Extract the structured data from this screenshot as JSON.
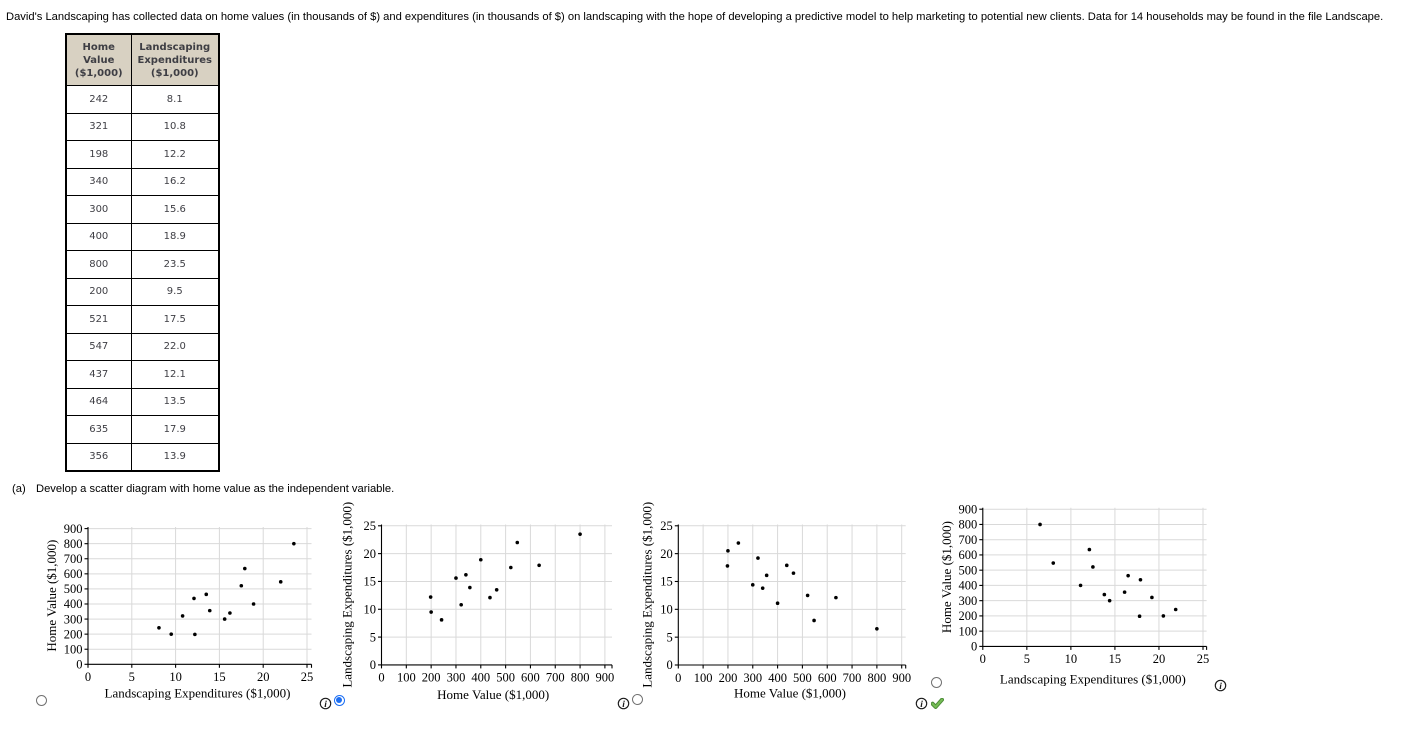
{
  "intro_text": "David's Landscaping has collected data on home values (in thousands of $) and expenditures (in thousands of $) on landscaping with the hope of developing a predictive model to help marketing to potential new clients. Data for 14 households may be found in the file Landscape.",
  "data_table": {
    "column_headers": [
      "Home Value ($1,000)",
      "Landscaping Expenditures ($1,000)"
    ],
    "column_header_lines": [
      [
        "Home",
        "Value",
        "($1,000)"
      ],
      [
        "Landscaping",
        "Expenditures",
        "($1,000)"
      ]
    ],
    "rows": [
      [
        "242",
        "8.1"
      ],
      [
        "321",
        "10.8"
      ],
      [
        "198",
        "12.2"
      ],
      [
        "340",
        "16.2"
      ],
      [
        "300",
        "15.6"
      ],
      [
        "400",
        "18.9"
      ],
      [
        "800",
        "23.5"
      ],
      [
        "200",
        "9.5"
      ],
      [
        "521",
        "17.5"
      ],
      [
        "547",
        "22.0"
      ],
      [
        "437",
        "12.1"
      ],
      [
        "464",
        "13.5"
      ],
      [
        "635",
        "17.9"
      ],
      [
        "356",
        "13.9"
      ]
    ]
  },
  "question": {
    "label": "(a)",
    "text": "Develop a scatter diagram with home value as the independent variable."
  },
  "options": [
    {
      "id": "option-1",
      "selected": false
    },
    {
      "id": "option-2",
      "selected": true
    },
    {
      "id": "option-3",
      "selected": false
    },
    {
      "id": "option-4",
      "selected": false
    }
  ],
  "grade_mark": {
    "shown": true,
    "type": "correct-checkmark",
    "color": "#69aa48"
  },
  "icons": {
    "info": "info-circle-icon",
    "info_glyph": "i",
    "radio": "radio-button",
    "check": "green-checkmark-icon"
  },
  "colors": {
    "radio_selected": "#1b6ef3",
    "table_header_bg": "#d8d1c2",
    "grid_line": "#d9d9d9",
    "axis_line": "#000000",
    "marker": "#000000",
    "check_green_dark": "#4e8c3a",
    "check_green_light": "#76bd55"
  },
  "chart_data": [
    {
      "type": "scatter",
      "xlabel": "Landscaping Expenditures ($1,000)",
      "ylabel": "Home Value ($1,000)",
      "xlim": [
        0,
        25
      ],
      "ylim": [
        0,
        900
      ],
      "xticks": [
        0,
        5,
        10,
        15,
        20,
        25
      ],
      "yticks": [
        0,
        100,
        200,
        300,
        400,
        500,
        600,
        700,
        800,
        900
      ],
      "grid": true,
      "x": [
        8.1,
        10.8,
        12.2,
        16.2,
        15.6,
        18.9,
        23.5,
        9.5,
        17.5,
        22.0,
        12.1,
        13.5,
        17.9,
        13.9
      ],
      "y": [
        242,
        321,
        198,
        340,
        300,
        400,
        800,
        200,
        521,
        547,
        437,
        464,
        635,
        356
      ]
    },
    {
      "type": "scatter",
      "xlabel": "Home Value ($1,000)",
      "ylabel": "Landscaping Expenditures ($1,000)",
      "xlim": [
        0,
        900
      ],
      "ylim": [
        0,
        25
      ],
      "xticks": [
        0,
        100,
        200,
        300,
        400,
        500,
        600,
        700,
        800,
        900
      ],
      "yticks": [
        0,
        5,
        10,
        15,
        20,
        25
      ],
      "grid": true,
      "x": [
        242,
        321,
        198,
        340,
        300,
        400,
        800,
        200,
        521,
        547,
        437,
        464,
        635,
        356
      ],
      "y": [
        8.1,
        10.8,
        12.2,
        16.2,
        15.6,
        18.9,
        23.5,
        9.5,
        17.5,
        22.0,
        12.1,
        13.5,
        17.9,
        13.9
      ]
    },
    {
      "type": "scatter",
      "xlabel": "Home Value ($1,000)",
      "ylabel": "Landscaping Expenditures ($1,000)",
      "xlim": [
        0,
        900
      ],
      "ylim": [
        0,
        25
      ],
      "xticks": [
        0,
        100,
        200,
        300,
        400,
        500,
        600,
        700,
        800,
        900
      ],
      "yticks": [
        0,
        5,
        10,
        15,
        20,
        25
      ],
      "grid": true,
      "x": [
        242,
        321,
        198,
        340,
        300,
        400,
        800,
        200,
        521,
        547,
        437,
        464,
        635,
        356
      ],
      "y": [
        21.9,
        19.2,
        17.8,
        13.8,
        14.4,
        11.1,
        6.5,
        20.5,
        12.5,
        8.0,
        17.9,
        16.5,
        12.1,
        16.1
      ]
    },
    {
      "type": "scatter",
      "xlabel": "Landscaping Expenditures ($1,000)",
      "ylabel": "Home Value ($1,000)",
      "xlim": [
        0,
        25
      ],
      "ylim": [
        0,
        900
      ],
      "xticks": [
        0,
        5,
        10,
        15,
        20,
        25
      ],
      "yticks": [
        0,
        100,
        200,
        300,
        400,
        500,
        600,
        700,
        800,
        900
      ],
      "grid": true,
      "x": [
        21.9,
        19.2,
        17.8,
        13.8,
        14.4,
        11.1,
        6.5,
        20.5,
        12.5,
        8.0,
        17.9,
        16.5,
        12.1,
        16.1
      ],
      "y": [
        242,
        321,
        198,
        340,
        300,
        400,
        800,
        200,
        521,
        547,
        437,
        464,
        635,
        356
      ]
    }
  ]
}
